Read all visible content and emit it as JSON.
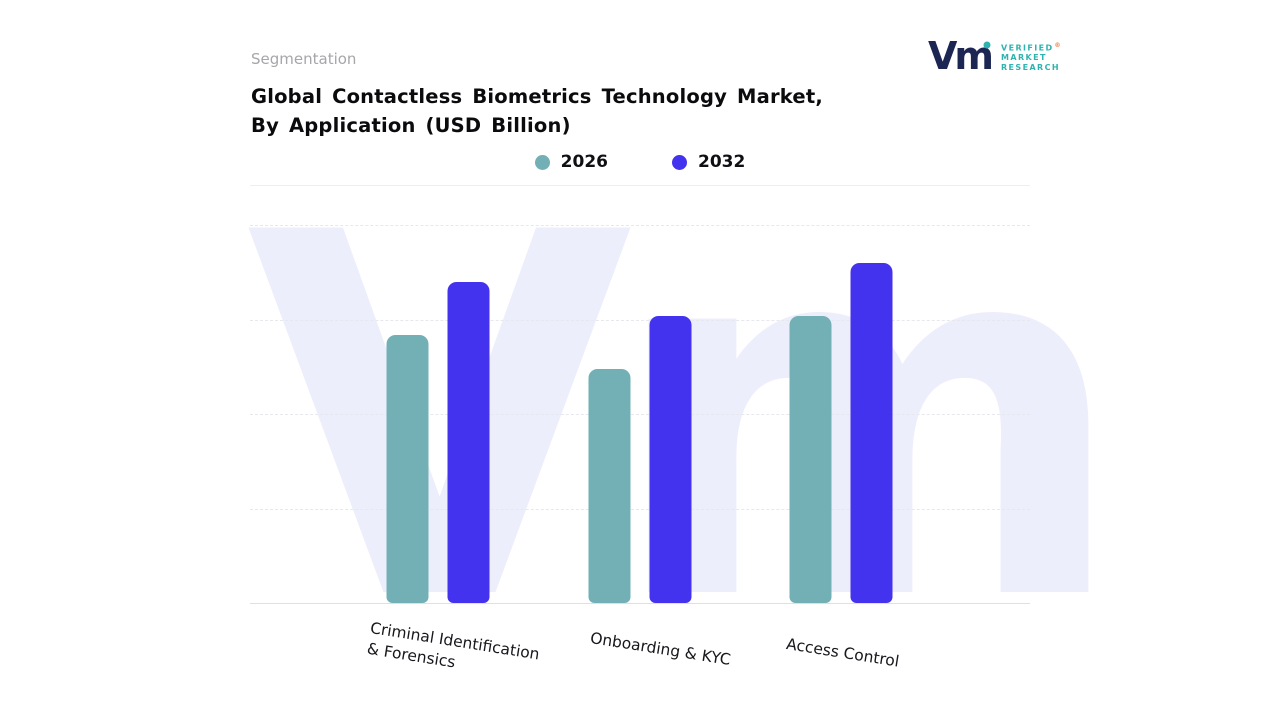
{
  "page": {
    "kicker": "Segmentation",
    "title_line1": "Global Contactless Biometrics Technology Market,",
    "title_line2": "By Application (USD Billion)",
    "watermark": "Vm"
  },
  "logo": {
    "glyph": "Vm",
    "registered": "®",
    "line1": "VERIFIED",
    "line2": "MARKET",
    "line3": "RESEARCH",
    "navy": "#1c2653",
    "teal": "#2fb3b0"
  },
  "chart_data": {
    "type": "bar",
    "title": "Global Contactless Biometrics Technology Market, By Application (USD Billion)",
    "categories": [
      "Criminal Identification & Forensics",
      "Onboarding & KYC",
      "Access Control"
    ],
    "series": [
      {
        "name": "2026",
        "color": "#72b0b5",
        "values": [
          71,
          62,
          76
        ]
      },
      {
        "name": "2032",
        "color": "#4433ee",
        "values": [
          85,
          76,
          90
        ]
      }
    ],
    "xlabel": "",
    "ylabel": "",
    "ylim": [
      0,
      100
    ],
    "values_unit": "relative bar height % (no numeric y-axis shown in image)",
    "grid": "dashed horizontal gridlines, solid baseline",
    "legend_position": "top-center"
  }
}
